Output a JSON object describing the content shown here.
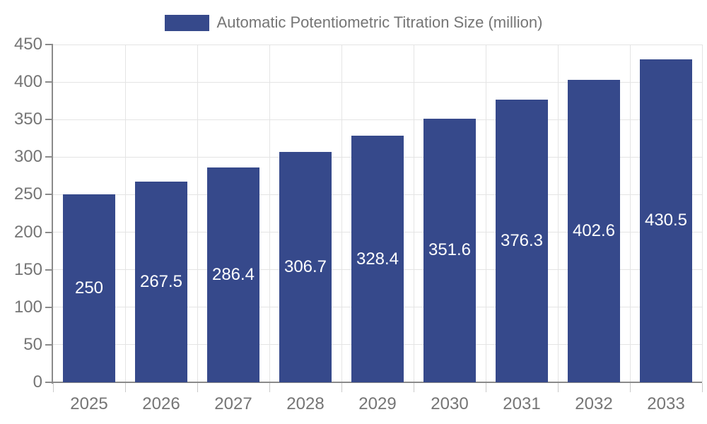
{
  "legend": {
    "label": "Automatic Potentiometric Titration Size (million)"
  },
  "colors": {
    "bar": "#36498B",
    "bar_value_text": "#ffffff",
    "axis_line": "#8a8a8a",
    "gridline": "#e4e4e4",
    "tick_text": "#757575",
    "legend_text": "#757575",
    "background": "#ffffff"
  },
  "chart_data": {
    "type": "bar",
    "title": "",
    "xlabel": "",
    "ylabel": "",
    "categories": [
      "2025",
      "2026",
      "2027",
      "2028",
      "2029",
      "2030",
      "2031",
      "2032",
      "2033"
    ],
    "series": [
      {
        "name": "Automatic Potentiometric Titration Size (million)",
        "values": [
          250,
          267.5,
          286.4,
          306.7,
          328.4,
          351.6,
          376.3,
          402.6,
          430.5
        ]
      }
    ],
    "value_labels": [
      "250",
      "267.5",
      "286.4",
      "306.7",
      "328.4",
      "351.6",
      "376.3",
      "402.6",
      "430.5"
    ],
    "value_label_position": "inside-center",
    "ylim": [
      0,
      450
    ],
    "yticks": [
      0,
      50,
      100,
      150,
      200,
      250,
      300,
      350,
      400,
      450
    ],
    "grid": true,
    "grid_vertical": true,
    "legend_position": "top-center"
  }
}
